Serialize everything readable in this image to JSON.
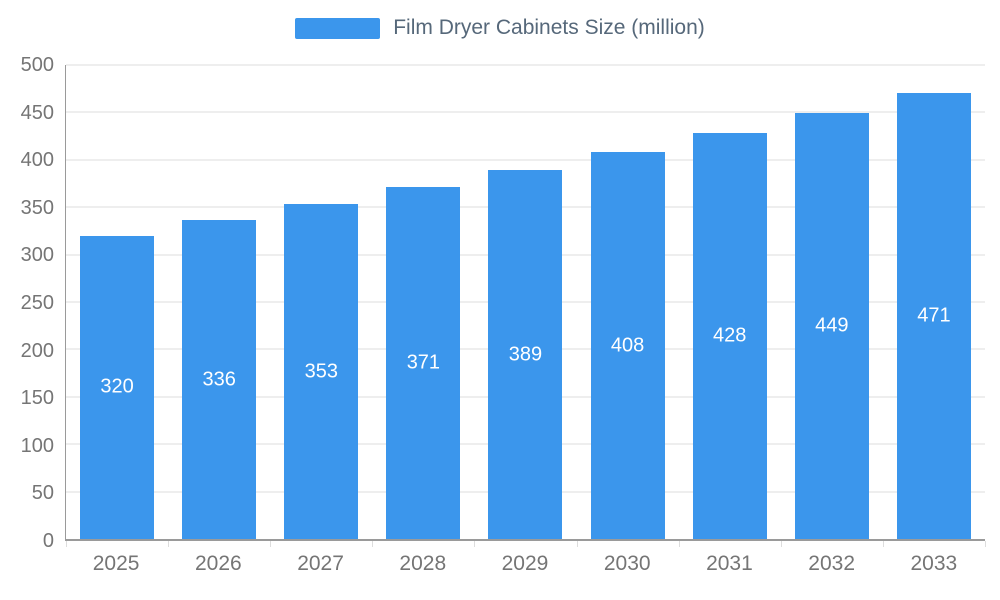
{
  "chart_data": {
    "type": "bar",
    "title": "Film Dryer Cabinets Size (million)",
    "categories": [
      "2025",
      "2026",
      "2027",
      "2028",
      "2029",
      "2030",
      "2031",
      "2032",
      "2033"
    ],
    "values": [
      320,
      336,
      353,
      371,
      389,
      408,
      428,
      449,
      471
    ],
    "xlabel": "",
    "ylabel": "",
    "ylim": [
      0,
      500
    ],
    "ytick_step": 50,
    "grid": true,
    "legend_position": "top",
    "value_labels": "inside-center"
  },
  "colors": {
    "bar": "#3B96EC",
    "bar_label": "#FFFFFF",
    "title": "#56687A",
    "axis_text": "#757575",
    "grid": "#DDDDDD",
    "axis": "#9A9A9A"
  }
}
